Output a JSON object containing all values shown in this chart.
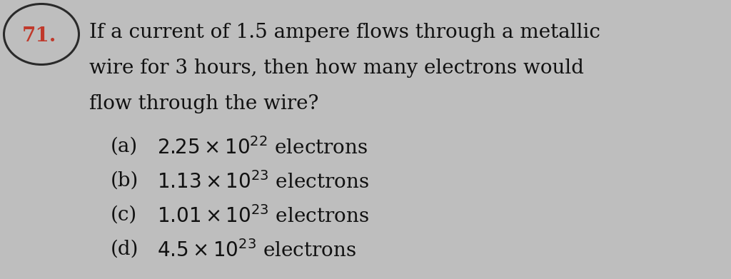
{
  "question_number": "71.",
  "question_text_line1": "If a current of 1.5 ampere flows through a metallic",
  "question_text_line2": "wire for 3 hours, then how many electrons would",
  "question_text_line3": "flow through the wire?",
  "options": [
    {
      "label": "(a)",
      "math": "$2.25 \\times 10^{22}$ electrons"
    },
    {
      "label": "(b)",
      "math": "$1.13 \\times 10^{23}$ electrons"
    },
    {
      "label": "(c)",
      "math": "$1.01 \\times 10^{23}$ electrons"
    },
    {
      "label": "(d)",
      "math": "$4.5 \\times 10^{23}$ electrons"
    }
  ],
  "bg_color": "#c8c8c8",
  "text_color": "#111111",
  "circle_color": "#2a2a2a",
  "number_color": "#c0392b",
  "font_size_question": 20,
  "font_size_options": 20,
  "font_size_number": 20
}
